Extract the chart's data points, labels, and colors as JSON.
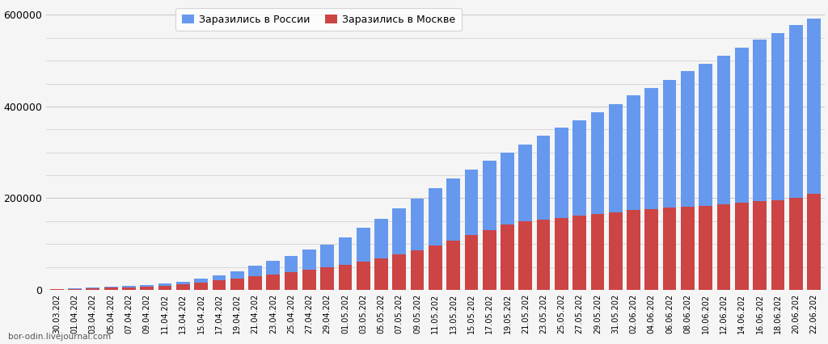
{
  "dates": [
    "30.03.202",
    "01.04.202",
    "03.04.202",
    "05.04.202",
    "07.04.202",
    "09.04.202",
    "11.04.202",
    "13.04.202",
    "15.04.202",
    "17.04.202",
    "19.04.202",
    "21.04.202",
    "23.04.202",
    "25.04.202",
    "27.04.202",
    "29.04.202",
    "01.05.202",
    "03.05.202",
    "05.05.202",
    "07.05.202",
    "09.05.202",
    "11.05.202",
    "13.05.202",
    "15.05.202",
    "17.05.202",
    "19.05.202",
    "21.05.202",
    "23.05.202",
    "25.05.202",
    "27.05.202",
    "29.05.202",
    "31.05.202",
    "02.06.202",
    "04.06.202",
    "06.06.202",
    "08.06.202",
    "10.06.202",
    "12.06.202",
    "14.06.202",
    "16.06.202",
    "18.06.202",
    "20.06.202",
    "22.06.202"
  ],
  "russia": [
    1836,
    3548,
    4731,
    6343,
    8672,
    10131,
    13584,
    18328,
    24490,
    32008,
    40773,
    52763,
    62773,
    74588,
    87147,
    99399,
    114431,
    134687,
    155370,
    177160,
    198676,
    221344,
    242271,
    262843,
    281752,
    299941,
    317554,
    335882,
    353427,
    370680,
    387623,
    405843,
    423741,
    440538,
    458689,
    476658,
    493657,
    511423,
    528964,
    545458,
    560321,
    576952,
    592280
  ],
  "moscow": [
    1105,
    2475,
    3341,
    4566,
    5765,
    6551,
    8894,
    12327,
    16146,
    20328,
    24324,
    29166,
    33940,
    38800,
    43578,
    48952,
    54386,
    61473,
    68622,
    77013,
    86270,
    96970,
    107045,
    119673,
    130688,
    142840,
    148820,
    153013,
    157053,
    161268,
    165929,
    169719,
    173449,
    176311,
    178830,
    181008,
    183986,
    186887,
    190585,
    193669,
    196284,
    200337,
    209688
  ],
  "russia_color": "#6699EE",
  "moscow_color": "#CC4444",
  "background_color": "#f5f5f5",
  "legend_russia": "Заразились в России",
  "legend_moscow": "Заразились в Москве",
  "watermark": "bor-odin.livejournal.com",
  "major_yticks": [
    0,
    200000,
    400000,
    600000
  ],
  "minor_yticks": [
    50000,
    100000,
    150000,
    250000,
    300000,
    350000,
    450000,
    500000,
    550000
  ],
  "ylim": [
    0,
    625000
  ]
}
